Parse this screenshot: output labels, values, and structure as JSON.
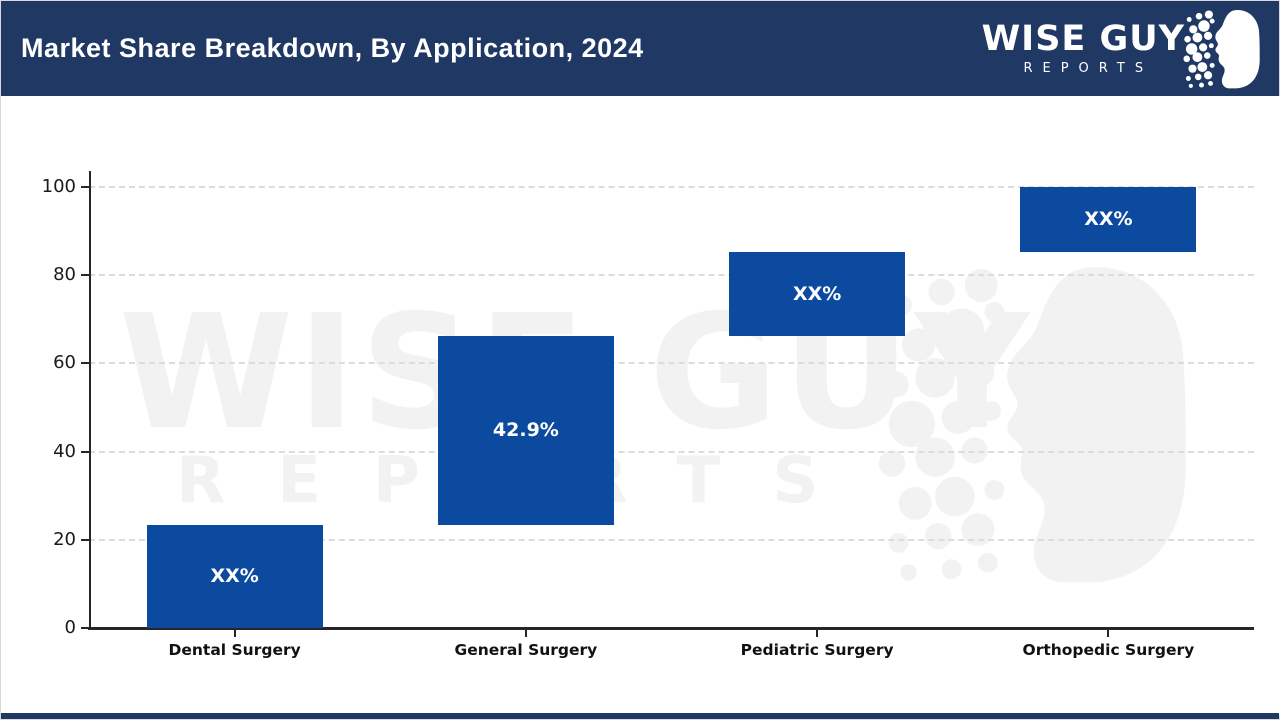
{
  "header": {
    "title": "Market Share Breakdown, By Application, 2024",
    "logo": {
      "line1": "WISE GUY",
      "line2": "REPORTS"
    }
  },
  "watermark": {
    "line1": "WISE GUY",
    "line2": "REPORTS"
  },
  "colors": {
    "header_bg": "#1f3864",
    "bar_fill": "#0b4a9e",
    "axis": "#262626",
    "gridline": "#dcdcdc",
    "watermark": "#f2f2f2",
    "label_text": "#111111",
    "bar_label_text": "#ffffff"
  },
  "chart_data": {
    "type": "bar",
    "subtype": "waterfall",
    "title": "Market Share Breakdown, By Application, 2024",
    "categories": [
      "Dental Surgery",
      "General Surgery",
      "Pediatric Surgery",
      "Orthopedic Surgery"
    ],
    "series": [
      {
        "name": "Market Share",
        "segments": [
          {
            "category": "Dental Surgery",
            "start": 0,
            "end": 23.4,
            "value": 23.4,
            "label": "XX%"
          },
          {
            "category": "General Surgery",
            "start": 23.4,
            "end": 66.3,
            "value": 42.9,
            "label": "42.9%"
          },
          {
            "category": "Pediatric Surgery",
            "start": 66.3,
            "end": 85.3,
            "value": 19.0,
            "label": "XX%"
          },
          {
            "category": "Orthopedic Surgery",
            "start": 85.3,
            "end": 100,
            "value": 14.7,
            "label": "XX%"
          }
        ]
      }
    ],
    "xlabel": "",
    "ylabel": "",
    "ylim": [
      0,
      100
    ],
    "yticks": [
      0,
      20,
      40,
      60,
      80,
      100
    ],
    "grid": "horizontal-dashed",
    "legend": "none"
  }
}
